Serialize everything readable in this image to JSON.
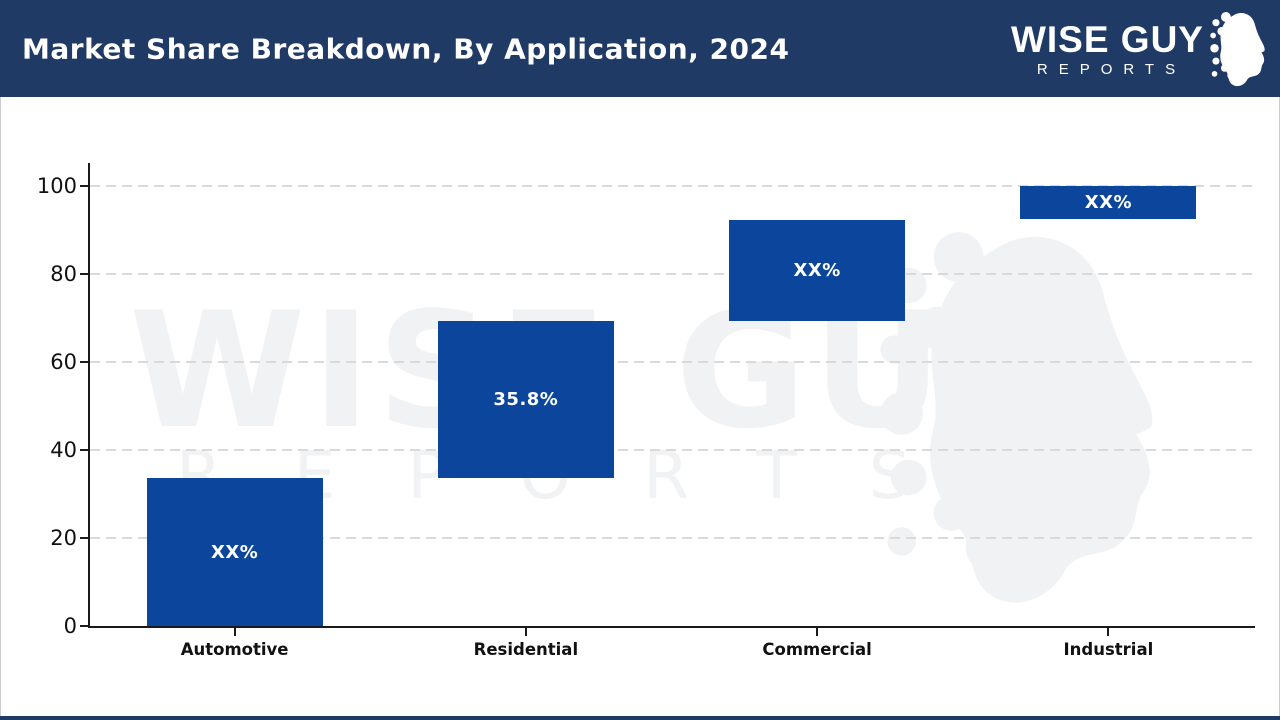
{
  "header": {
    "title": "Market Share Breakdown, By Application, 2024",
    "logo": {
      "line1": "WISE GUY",
      "line2": "REPORTS"
    }
  },
  "watermark": {
    "line1": "WISE GUY",
    "line2": "REPORTS"
  },
  "colors": {
    "header_navy": "#203A66",
    "bar_blue": "#0B469C",
    "grid_gray": "#d9d9d9",
    "watermark_gray": "#f1f2f4"
  },
  "chart_data": {
    "type": "bar",
    "subtype": "waterfall",
    "title": "Market Share Breakdown, By Application, 2024",
    "xlabel": "",
    "ylabel": "",
    "categories": [
      "Automotive",
      "Residential",
      "Commercial",
      "Industrial"
    ],
    "segments": [
      {
        "category": "Automotive",
        "start": 0,
        "end": 33.6,
        "label": "XX%"
      },
      {
        "category": "Residential",
        "start": 33.6,
        "end": 69.4,
        "label": "35.8%"
      },
      {
        "category": "Commercial",
        "start": 69.4,
        "end": 92.2,
        "label": "XX%"
      },
      {
        "category": "Industrial",
        "start": 92.4,
        "end": 100,
        "label": "XX%"
      }
    ],
    "yticks": [
      0,
      20,
      40,
      60,
      80,
      100
    ],
    "ylim": [
      0,
      105
    ],
    "grid": "horizontal-dashed",
    "legend": "none",
    "bar_color": "#0B469C",
    "bar_label_color": "#ffffff"
  }
}
